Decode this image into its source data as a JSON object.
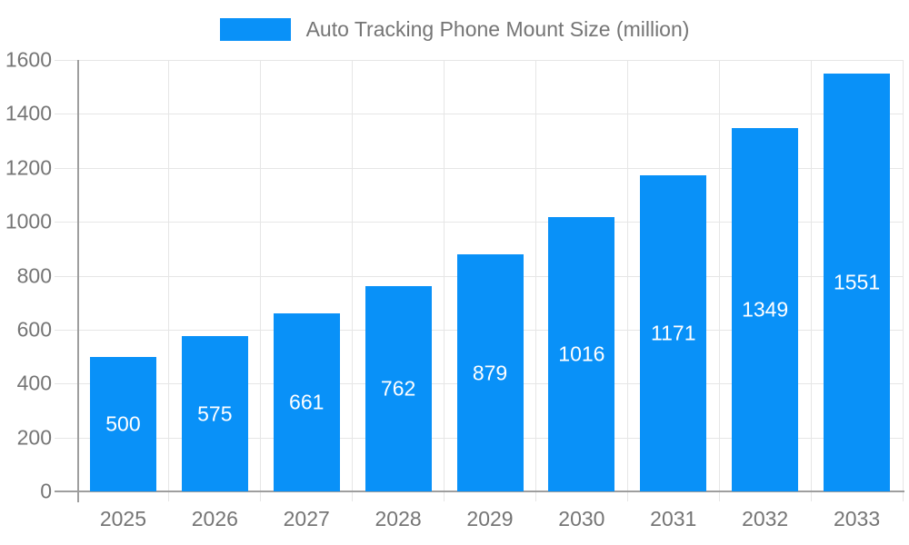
{
  "legend": {
    "label": "Auto Tracking Phone Mount Size (million)"
  },
  "chart_data": {
    "type": "bar",
    "title": "Auto Tracking Phone Mount Size (million)",
    "categories": [
      "2025",
      "2026",
      "2027",
      "2028",
      "2029",
      "2030",
      "2031",
      "2032",
      "2033"
    ],
    "values": [
      500,
      575,
      661,
      762,
      879,
      1016,
      1171,
      1349,
      1551
    ],
    "value_labels": [
      "500",
      "575",
      "661",
      "762",
      "879",
      "1016",
      "1171",
      "1349",
      "1551"
    ],
    "xlabel": "",
    "ylabel": "",
    "ylim": [
      0,
      1600
    ],
    "yticks": [
      0,
      200,
      400,
      600,
      800,
      1000,
      1200,
      1400,
      1600
    ],
    "grid": true,
    "legend_position": "top-center",
    "colors": {
      "bar": "#0991f8",
      "value_label": "#ffffff",
      "axis_text": "#757575",
      "grid_line": "#e6e6e6",
      "axis_line": "#9e9e9e",
      "background": "#ffffff"
    }
  }
}
